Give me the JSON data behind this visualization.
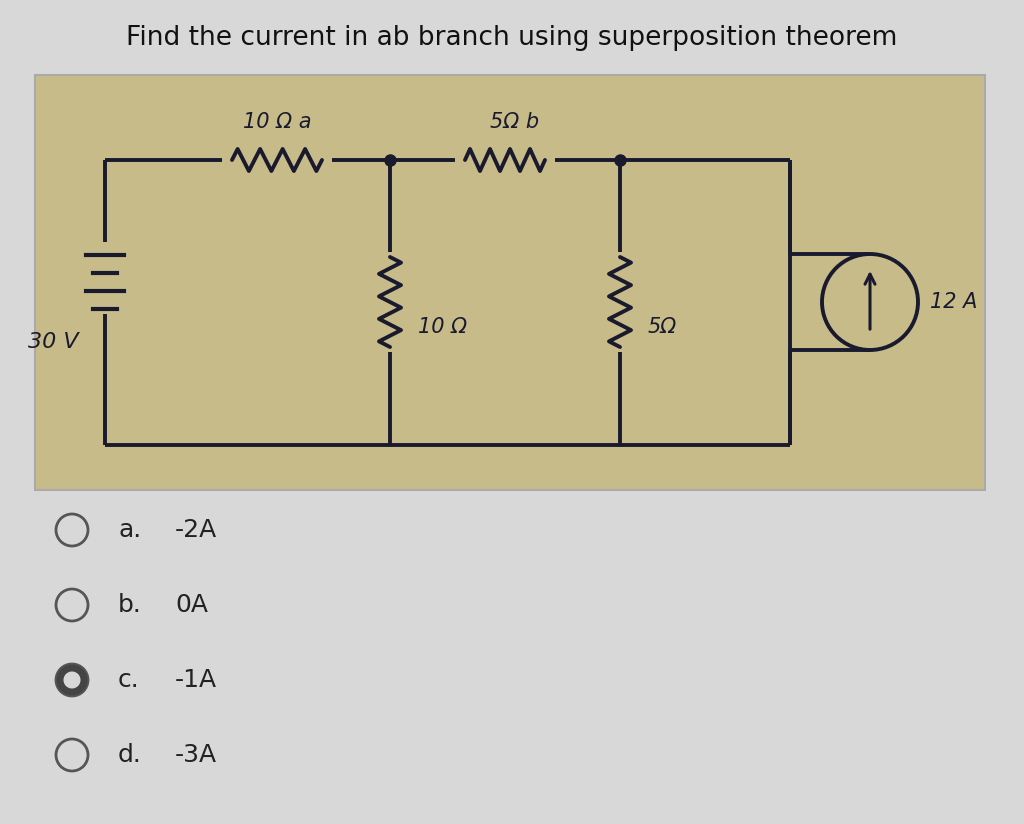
{
  "title": "Find the current in ab branch using superposition theorem",
  "title_fontsize": 19,
  "bg_color": "#d8d8d8",
  "circuit_bg": "#c8bb8a",
  "circuit_border": "#888888",
  "line_color": "#1a1a2e",
  "options": [
    {
      "label": "a.",
      "value": "-2A",
      "selected": false
    },
    {
      "label": "b.",
      "value": "0A",
      "selected": false
    },
    {
      "label": "c.",
      "value": "-1A",
      "selected": true
    },
    {
      "label": "d.",
      "value": "-3A",
      "selected": false
    }
  ],
  "resistor_labels": {
    "top_left": "10 Ω a",
    "top_right": "5Ω b",
    "mid_left": "10 Ω",
    "mid_right": "5Ω"
  },
  "voltage_label": "30 V",
  "current_label": "12 A"
}
